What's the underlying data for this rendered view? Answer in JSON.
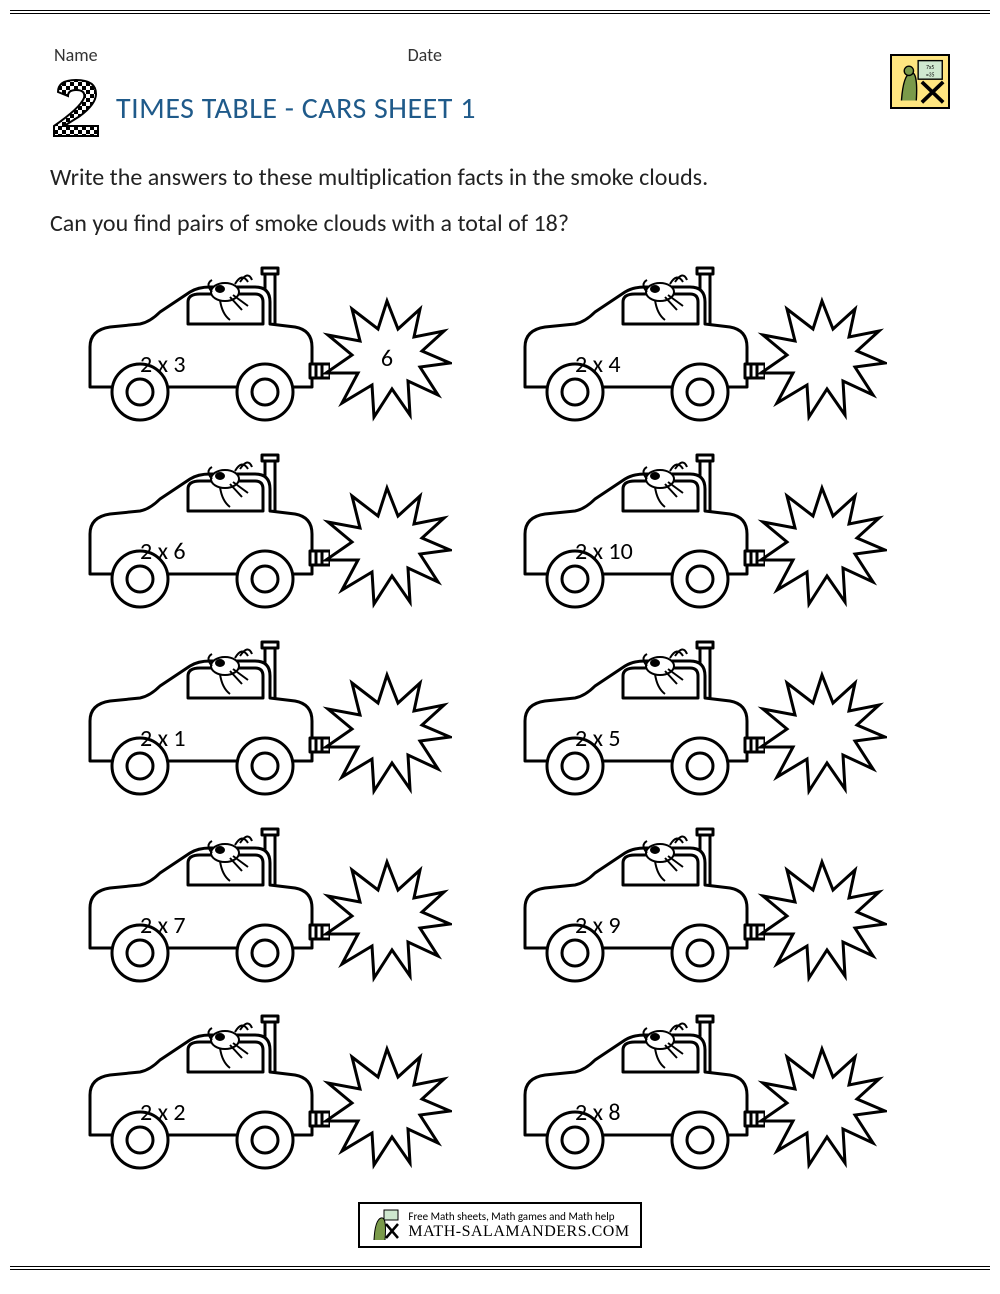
{
  "header": {
    "name_label": "Name",
    "date_label": "Date"
  },
  "title": "TIMES TABLE - CARS SHEET 1",
  "number_glyph": "2",
  "instructions": {
    "line1": "Write the answers to these multiplication facts in the smoke clouds.",
    "line2": "Can you find pairs of smoke clouds with a total of 18?"
  },
  "colors": {
    "title": "#1f5a8a",
    "stroke": "#000000",
    "fill": "#ffffff",
    "logo_bg": "#ffe680"
  },
  "problems": [
    {
      "expr": "2 x 3",
      "answer": "6"
    },
    {
      "expr": "2 x 4",
      "answer": ""
    },
    {
      "expr": "2 x 6",
      "answer": ""
    },
    {
      "expr": "2 x 10",
      "answer": ""
    },
    {
      "expr": "2 x 1",
      "answer": ""
    },
    {
      "expr": "2 x 5",
      "answer": ""
    },
    {
      "expr": "2 x 7",
      "answer": ""
    },
    {
      "expr": "2 x 9",
      "answer": ""
    },
    {
      "expr": "2 x 2",
      "answer": ""
    },
    {
      "expr": "2 x 8",
      "answer": ""
    }
  ],
  "footer": {
    "tagline": "Free Math sheets, Math games and Math help",
    "site": "MATH-SALAMANDERS.COM"
  }
}
